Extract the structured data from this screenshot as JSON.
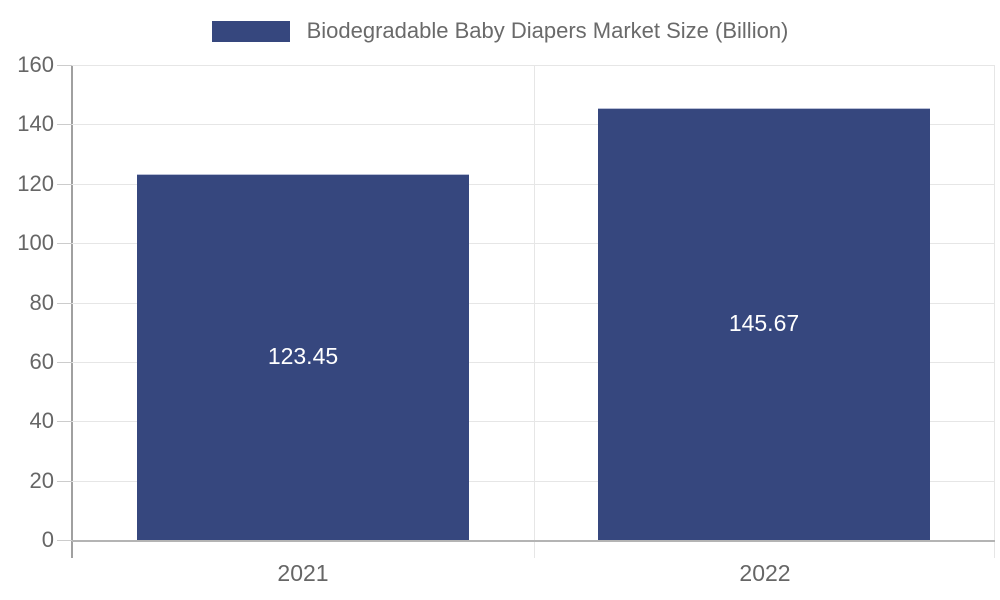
{
  "legend": {
    "label": "Biodegradable Baby Diapers Market Size (Billion)"
  },
  "colors": {
    "bar": "#36477E",
    "y_axis_line": "#a0a0a0",
    "x_axis_line": "#b4b4b4",
    "gridline": "#e6e6e6",
    "tick": "#cccccc",
    "axis_label": "#666666",
    "value_label": "#ffffff",
    "background": "#ffffff"
  },
  "chart_data": {
    "type": "bar",
    "title": "Biodegradable Baby Diapers Market Size (Billion)",
    "categories": [
      "2021",
      "2022"
    ],
    "values": [
      123.45,
      145.67
    ],
    "value_labels": [
      "123.45",
      "145.67"
    ],
    "xlabel": "",
    "ylabel": "",
    "ylim": [
      0,
      160
    ],
    "yticks": [
      0,
      20,
      40,
      60,
      80,
      100,
      120,
      140,
      160
    ],
    "grid": true,
    "legend_position": "top",
    "value_label_position": "center-of-bar"
  }
}
